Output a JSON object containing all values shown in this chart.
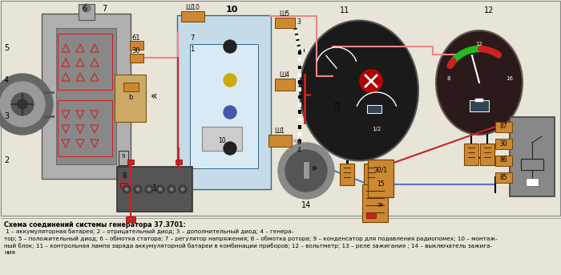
{
  "bg_color": "#e8e4d8",
  "caption_bold": "Схема соединений системы генератора 37.3701:",
  "caption_lines": [
    " 1 – аккумуляторная батарея; 2 – отрицательный диод; 3 – дополнительный диод; 4 – генера-",
    "тор; 5 – положительный диод; 6 – обмотка статора; 7 – регулятор напряжения; 8 – обмотка ротора; 9 – конденсатор для подавления радиопомех; 10 – монтаж-",
    "ный блок; 11 – контрольная лампа заряда аккумуляторной батареи в комбинации приборов; 12 – вольтметр; 13 – реле зажигания ; 14 – выключатель зажига-",
    "ния"
  ],
  "red_wire": "#cc2222",
  "pink_wire": "#ee8888",
  "blue_wire": "#5577cc",
  "orange_conn": "#cc8833",
  "light_blue_bg": "#c5dce8",
  "gen_gray1": "#8a8a8a",
  "gen_gray2": "#aaaaaa",
  "gen_gray3": "#777777",
  "gen_gray4": "#999999",
  "figsize": [
    7.0,
    3.43
  ],
  "dpi": 100
}
